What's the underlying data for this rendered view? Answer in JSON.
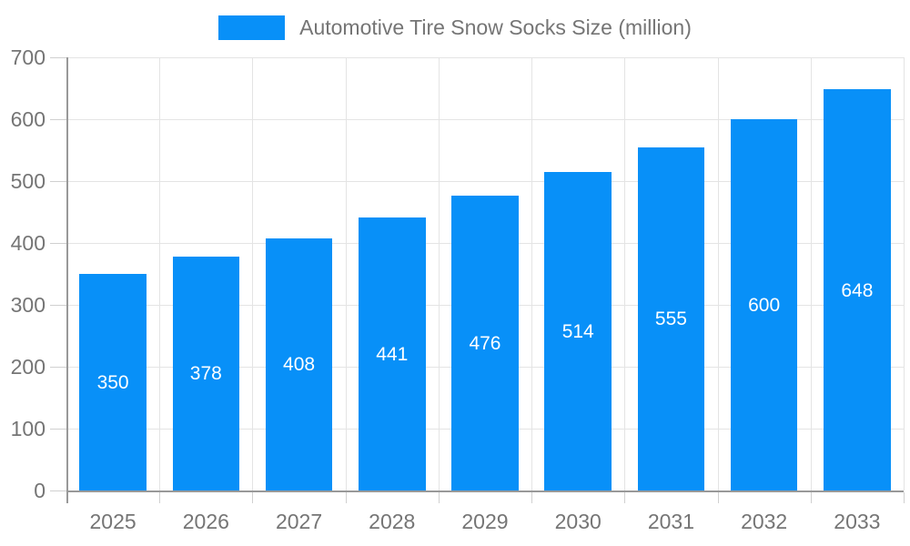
{
  "chart_data": {
    "type": "bar",
    "title": "Automotive Tire Snow Socks Size (million)",
    "legend": {
      "label": "Automotive Tire Snow Socks Size (million)",
      "position": "top-center"
    },
    "categories": [
      "2025",
      "2026",
      "2027",
      "2028",
      "2029",
      "2030",
      "2031",
      "2032",
      "2033"
    ],
    "values": [
      350,
      378,
      408,
      441,
      476,
      514,
      555,
      600,
      648
    ],
    "xlabel": "",
    "ylabel": "",
    "ylim": [
      0,
      700
    ],
    "ytick_step": 100,
    "yticks": [
      0,
      100,
      200,
      300,
      400,
      500,
      600,
      700
    ],
    "grid": true,
    "value_labels": "inside-center"
  },
  "colors": {
    "bar": "#0890f8",
    "grid": "#e4e4e4",
    "tick": "#d0d0d0",
    "axis": "#999999",
    "text": "#757575",
    "bar_label": "#ffffff"
  }
}
